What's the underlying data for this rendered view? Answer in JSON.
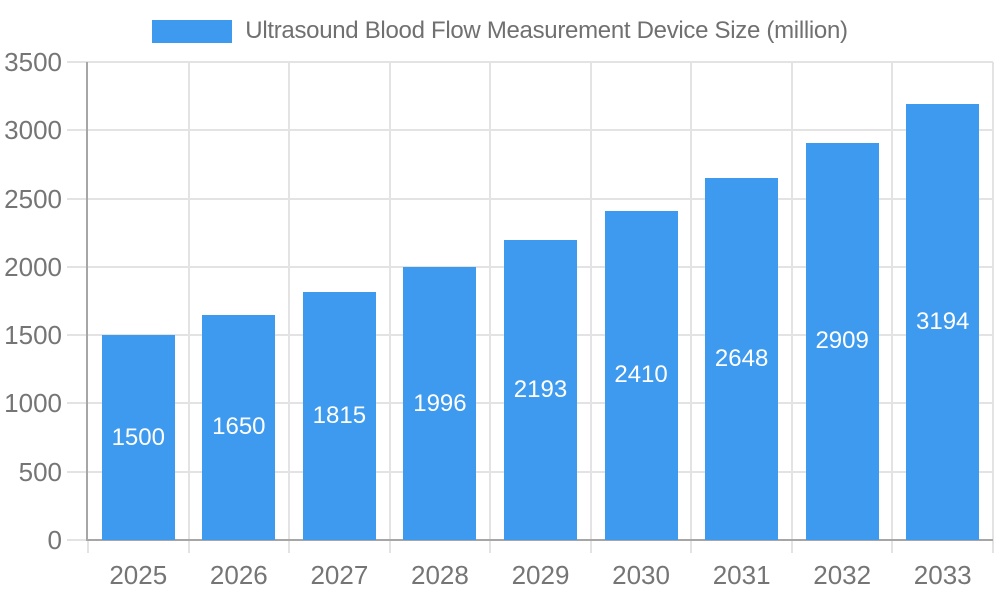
{
  "chart_data": {
    "type": "bar",
    "title": "Ultrasound Blood Flow Measurement Device Size (million)",
    "categories": [
      "2025",
      "2026",
      "2027",
      "2028",
      "2029",
      "2030",
      "2031",
      "2032",
      "2033"
    ],
    "values": [
      1500,
      1650,
      1815,
      1996,
      2193,
      2410,
      2648,
      2909,
      3194
    ],
    "series": [
      {
        "name": "Ultrasound Blood Flow Measurement Device Size (million)",
        "values": [
          1500,
          1650,
          1815,
          1996,
          2193,
          2410,
          2648,
          2909,
          3194
        ]
      }
    ],
    "xlabel": "",
    "ylabel": "",
    "ylim": [
      0,
      3500
    ],
    "ytick_step": 500,
    "yticks": [
      "0",
      "500",
      "1000",
      "1500",
      "2000",
      "2500",
      "3000",
      "3500"
    ],
    "grid": true,
    "legend_position": "top-center",
    "value_labels": "inside-center",
    "colors": {
      "bar": "#3D9AEF",
      "bar_value_label": "#FFFFFF",
      "grid_line": "#E3E3E3",
      "axis_line": "#A6A6A6",
      "tick_label": "#757575",
      "legend_text": "#707070",
      "background": "#FFFFFF"
    }
  }
}
